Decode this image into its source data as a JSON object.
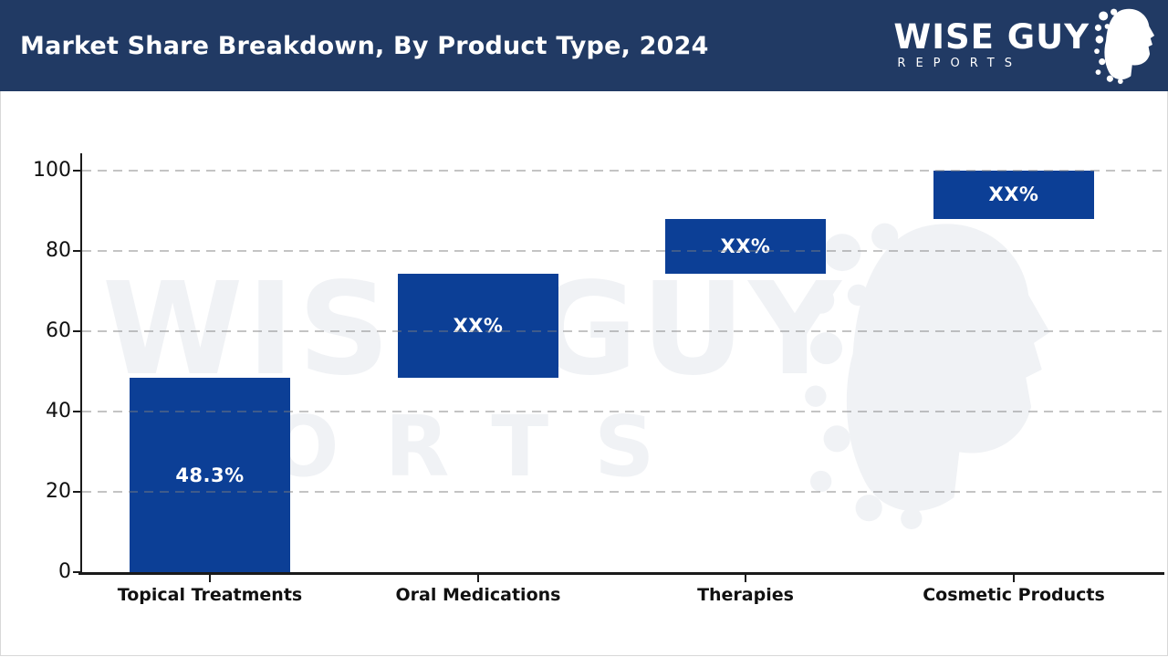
{
  "header": {
    "title": "Market Share Breakdown, By Product Type, 2024",
    "logo": {
      "line1": "WISE GUY",
      "line2": "REPORTS"
    }
  },
  "watermark": {
    "line1": "WISE GUY",
    "line2": "PORTS"
  },
  "colors": {
    "header_bg": "#213a64",
    "bar": "#0c3f96",
    "bar_label": "#ffffff",
    "gridline": "#d9d9d9",
    "axis": "#1a1a1a",
    "watermark": "#f0f2f5"
  },
  "chart_data": {
    "type": "bar",
    "subtype": "floating-waterfall-percentage",
    "title": "Market Share Breakdown, By Product Type, 2024",
    "categories": [
      "Topical Treatments",
      "Oral Medications",
      "Therapies",
      "Cosmetic Products"
    ],
    "segments": [
      {
        "category": "Topical Treatments",
        "start": 0,
        "end": 48.3,
        "label": "48.3%"
      },
      {
        "category": "Oral Medications",
        "start": 48.3,
        "end": 74.3,
        "label": "XX%"
      },
      {
        "category": "Therapies",
        "start": 74.3,
        "end": 88.0,
        "label": "XX%"
      },
      {
        "category": "Cosmetic Products",
        "start": 88.0,
        "end": 100.0,
        "label": "XX%"
      }
    ],
    "xlabel": "",
    "ylabel": "",
    "ylim": [
      0,
      100
    ],
    "yticks": [
      "0",
      "20",
      "40",
      "60",
      "80",
      "100"
    ],
    "grid": "horizontal dashed",
    "legend": "none"
  }
}
